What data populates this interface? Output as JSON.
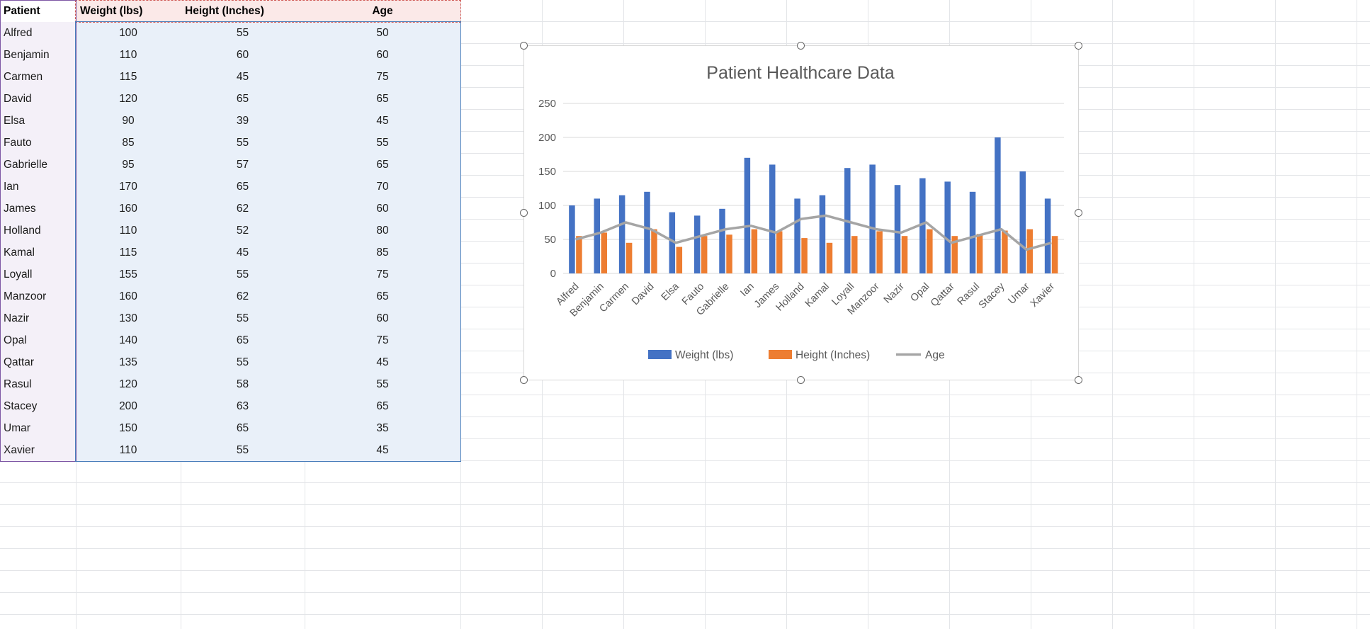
{
  "sheet": {
    "table": {
      "headers": [
        "Patient",
        "Weight (lbs)",
        "Height (Inches)",
        "Age"
      ],
      "rows": [
        [
          "Alfred",
          100,
          55,
          50
        ],
        [
          "Benjamin",
          110,
          60,
          60
        ],
        [
          "Carmen",
          115,
          45,
          75
        ],
        [
          "David",
          120,
          65,
          65
        ],
        [
          "Elsa",
          90,
          39,
          45
        ],
        [
          "Fauto",
          85,
          55,
          55
        ],
        [
          "Gabrielle",
          95,
          57,
          65
        ],
        [
          "Ian",
          170,
          65,
          70
        ],
        [
          "James",
          160,
          62,
          60
        ],
        [
          "Holland",
          110,
          52,
          80
        ],
        [
          "Kamal",
          115,
          45,
          85
        ],
        [
          "Loyall",
          155,
          55,
          75
        ],
        [
          "Manzoor",
          160,
          62,
          65
        ],
        [
          "Nazir",
          130,
          55,
          60
        ],
        [
          "Opal",
          140,
          65,
          75
        ],
        [
          "Qattar",
          135,
          55,
          45
        ],
        [
          "Rasul",
          120,
          58,
          55
        ],
        [
          "Stacey",
          200,
          63,
          65
        ],
        [
          "Umar",
          150,
          65,
          35
        ],
        [
          "Xavier",
          110,
          55,
          45
        ]
      ]
    },
    "range_highlight_colors": {
      "series_names": "#d05a55",
      "categories": "#7e57a5",
      "values": "#4a7ebb"
    }
  },
  "chart_data": {
    "type": "bar",
    "title": "Patient Healthcare Data",
    "categories": [
      "Alfred",
      "Benjamin",
      "Carmen",
      "David",
      "Elsa",
      "Fauto",
      "Gabrielle",
      "Ian",
      "James",
      "Holland",
      "Kamal",
      "Loyall",
      "Manzoor",
      "Nazir",
      "Opal",
      "Qattar",
      "Rasul",
      "Stacey",
      "Umar",
      "Xavier"
    ],
    "series": [
      {
        "name": "Weight (lbs)",
        "type": "bar",
        "color": "#4472C4",
        "values": [
          100,
          110,
          115,
          120,
          90,
          85,
          95,
          170,
          160,
          110,
          115,
          155,
          160,
          130,
          140,
          135,
          120,
          200,
          150,
          110
        ]
      },
      {
        "name": "Height (Inches)",
        "type": "bar",
        "color": "#ED7D31",
        "values": [
          55,
          60,
          45,
          65,
          39,
          55,
          57,
          65,
          62,
          52,
          45,
          55,
          62,
          55,
          65,
          55,
          58,
          63,
          65,
          55
        ]
      },
      {
        "name": "Age",
        "type": "line",
        "color": "#A5A5A5",
        "values": [
          50,
          60,
          75,
          65,
          45,
          55,
          65,
          70,
          60,
          80,
          85,
          75,
          65,
          60,
          75,
          45,
          55,
          65,
          35,
          45
        ]
      }
    ],
    "ylim": [
      0,
      250
    ],
    "yticks": [
      0,
      50,
      100,
      150,
      200,
      250
    ],
    "grid": true,
    "legend_position": "bottom",
    "title_color": "#595959",
    "axis_color": "#595959",
    "gridline_color": "#d9d9d9"
  }
}
